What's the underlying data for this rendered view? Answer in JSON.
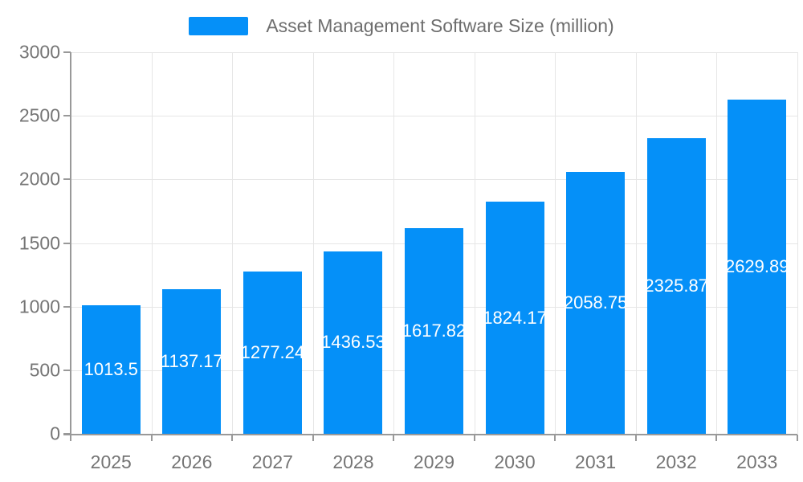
{
  "legend": {
    "label": "Asset Management Software Size (million)"
  },
  "chart_data": {
    "type": "bar",
    "title": "Asset Management Software Size (million)",
    "series_name": "Asset Management Software Size (million)",
    "categories": [
      "2025",
      "2026",
      "2027",
      "2028",
      "2029",
      "2030",
      "2031",
      "2032",
      "2033"
    ],
    "values": [
      1013.5,
      1137.17,
      1277.24,
      1436.53,
      1617.82,
      1824.17,
      2058.75,
      2325.87,
      2629.89
    ],
    "xlabel": "",
    "ylabel": "",
    "ylim": [
      0,
      3000
    ],
    "yticks": [
      0,
      500,
      1000,
      1500,
      2000,
      2500,
      3000
    ],
    "grid": true,
    "legend_position": "top",
    "colors": {
      "bar": "#0590F8",
      "bar_label": "#ffffff",
      "axis_text": "#757575",
      "legend_text": "#6e6e6e",
      "gridline": "#e6e6e6",
      "axis_line": "#999999"
    }
  }
}
